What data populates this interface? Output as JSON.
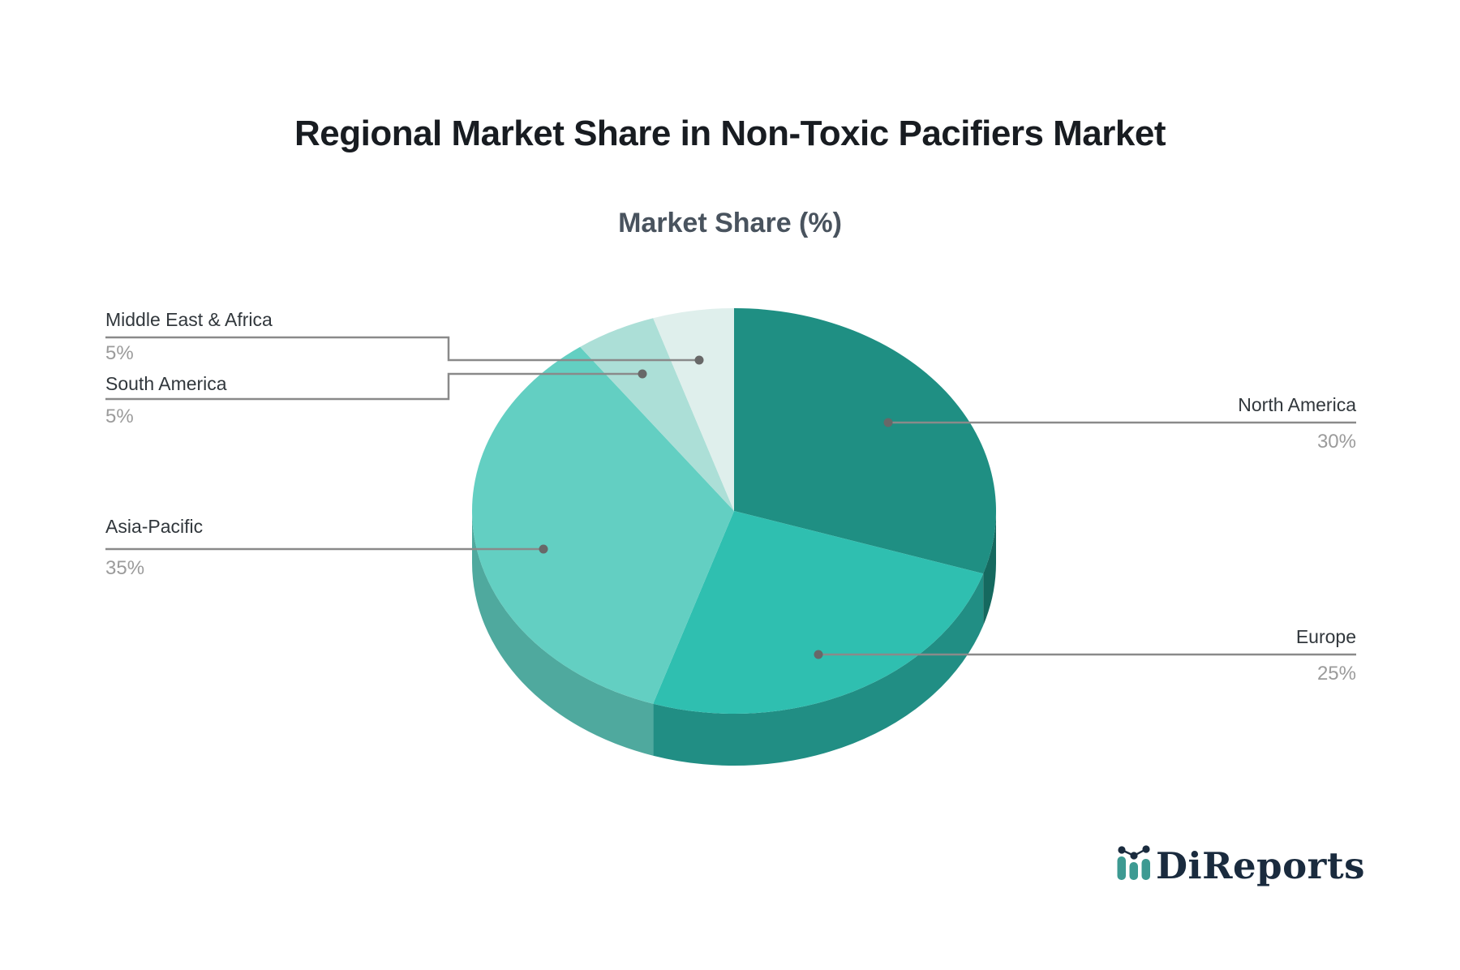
{
  "header": {
    "title": "Regional Market Share in Non-Toxic Pacifiers Market",
    "subtitle": "Market Share (%)"
  },
  "chart_data": {
    "type": "pie",
    "style": "3d",
    "title": "Regional Market Share in Non-Toxic Pacifiers Market",
    "subtitle": "Market Share (%)",
    "unit": "percent",
    "start_angle_deg": -90,
    "direction": "clockwise",
    "legend_position": "callout-labels",
    "label_color": "#31373C",
    "value_color": "#9B9B9B",
    "connector_color": "#8A8A8A",
    "connector_dot_color": "#686868",
    "slices": [
      {
        "label": "North America",
        "value": 30,
        "value_label": "30%",
        "color": "#1F8F83",
        "side_color": "#15695F"
      },
      {
        "label": "Europe",
        "value": 25,
        "value_label": "25%",
        "color": "#2FBFB0",
        "side_color": "#218E84"
      },
      {
        "label": "Asia-Pacific",
        "value": 35,
        "value_label": "35%",
        "color": "#63CFC2",
        "side_color": "#4FA99E"
      },
      {
        "label": "South America",
        "value": 5,
        "value_label": "5%",
        "color": "#ACDFD7",
        "side_color": "#8CBEB6"
      },
      {
        "label": "Middle East & Africa",
        "value": 5,
        "value_label": "5%",
        "color": "#DFEFEC",
        "side_color": "#BFD6D2"
      }
    ]
  },
  "logo": {
    "text": "DiReports",
    "icon": "bar-line-chart-icon",
    "text_color": "#1A2B3E",
    "bar_color": "#3D9A92"
  }
}
